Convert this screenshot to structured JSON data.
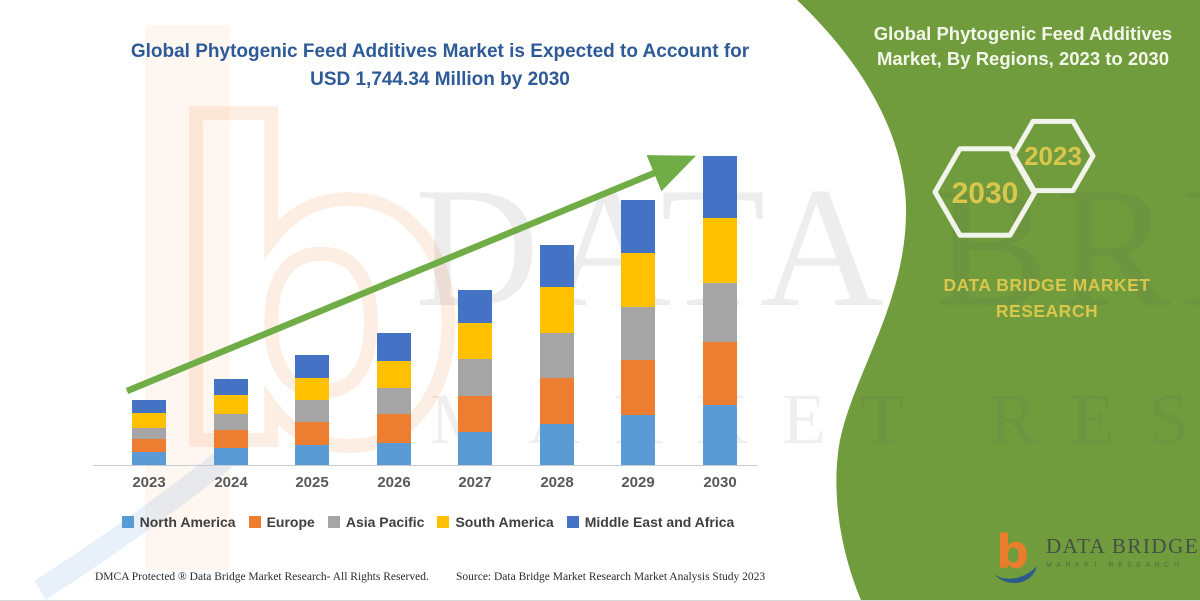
{
  "headline": {
    "line1": "Global Phytogenic Feed Additives Market is Expected to Account for",
    "line2": "USD 1,744.34 Million by 2030"
  },
  "side_panel": {
    "heading": "Global Phytogenic Feed Additives Market, By Regions, 2023 to 2030",
    "hexagon_large_year": "2030",
    "hexagon_small_year": "2023",
    "brand_caption": "DATA BRIDGE MARKET RESEARCH",
    "colors": {
      "background": "#719C3D",
      "accent_text": "#D8C74C",
      "hex_outline": "#F2F4EC"
    }
  },
  "watermark": {
    "letter": "b",
    "line1": "DATA BRIDGE",
    "line2": "MARKET RESEARCH"
  },
  "chart_data": {
    "type": "bar",
    "stacked": true,
    "title": "Global Phytogenic Feed Additives Market, 2023 to 2030",
    "unit": "USD Million (estimated from bar heights; no y-axis shown)",
    "categories": [
      "2023",
      "2024",
      "2025",
      "2026",
      "2027",
      "2028",
      "2029",
      "2030"
    ],
    "series": [
      {
        "name": "North America",
        "color": "#5B9BD5",
        "values": [
          72,
          94,
          113,
          126,
          188,
          229,
          282,
          338
        ]
      },
      {
        "name": "Europe",
        "color": "#ED7D31",
        "values": [
          76,
          104,
          127,
          160,
          201,
          259,
          310,
          357
        ]
      },
      {
        "name": "Asia Pacific",
        "color": "#A5A5A5",
        "values": [
          60,
          90,
          126,
          151,
          207,
          258,
          301,
          334
        ]
      },
      {
        "name": "South America",
        "color": "#FFC000",
        "values": [
          85,
          107,
          122,
          151,
          207,
          256,
          305,
          365
        ]
      },
      {
        "name": "Middle East and Africa",
        "color": "#4472C4",
        "values": [
          75,
          90,
          132,
          156,
          184,
          239,
          297,
          350
        ]
      }
    ],
    "totals_estimated": [
      368,
      485,
      620,
      744,
      987,
      1241,
      1495,
      1744
    ],
    "stated_2030_total": "USD 1,744.34 Million",
    "legend_position": "bottom",
    "grid": false,
    "y_axis_labels": false,
    "trend_arrow": true,
    "trend_arrow_color": "#70AD47"
  },
  "footer": {
    "left": "DMCA Protected ® Data Bridge Market Research-  All Rights Reserved.",
    "right": "Source: Data Bridge Market Research  Market Analysis Study 2023"
  },
  "logo": {
    "brand": "DATA BRIDGE",
    "sub": "MARKET RESEARCH"
  }
}
